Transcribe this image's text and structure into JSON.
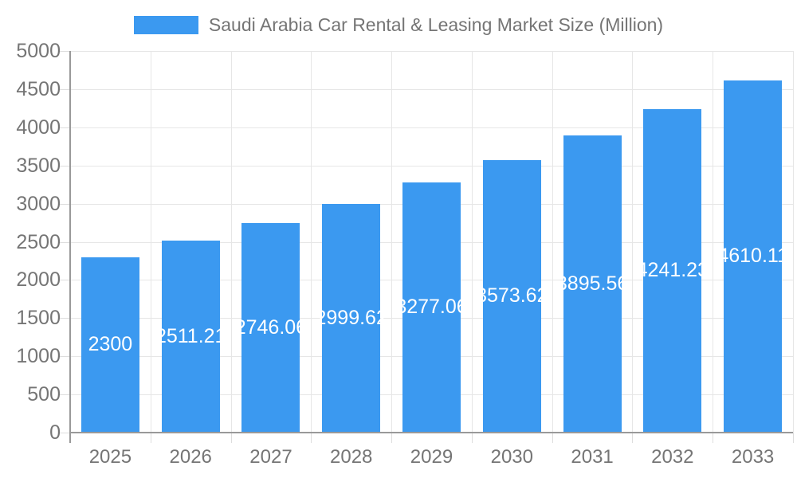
{
  "chart_data": {
    "type": "bar",
    "title": "Saudi Arabia Car Rental & Leasing Market Size (Million)",
    "legend": "Saudi Arabia Car Rental & Leasing Market Size (Million)",
    "legend_position": "top",
    "categories": [
      "2025",
      "2026",
      "2027",
      "2028",
      "2029",
      "2030",
      "2031",
      "2032",
      "2033"
    ],
    "values": [
      2300,
      2511.21,
      2746.06,
      2999.62,
      3277.06,
      3573.62,
      3895.56,
      4241.23,
      4610.11
    ],
    "bar_labels": [
      "2300",
      "2511.21",
      "2746.06",
      "2999.62",
      "3277.06",
      "3573.62",
      "3895.56",
      "4241.23",
      "4610.11"
    ],
    "yticks": [
      0,
      500,
      1000,
      1500,
      2000,
      2500,
      3000,
      3500,
      4000,
      4500,
      5000
    ],
    "ylim": [
      0,
      5000
    ],
    "grid": true,
    "xlabel": "",
    "ylabel": "",
    "bar_color": "#3b99f0",
    "bar_label_color": "#ffffff",
    "grid_color": "#e6e6e6",
    "tick_color": "#dddddd",
    "axis_color": "#999999",
    "text_color": "#757575"
  }
}
